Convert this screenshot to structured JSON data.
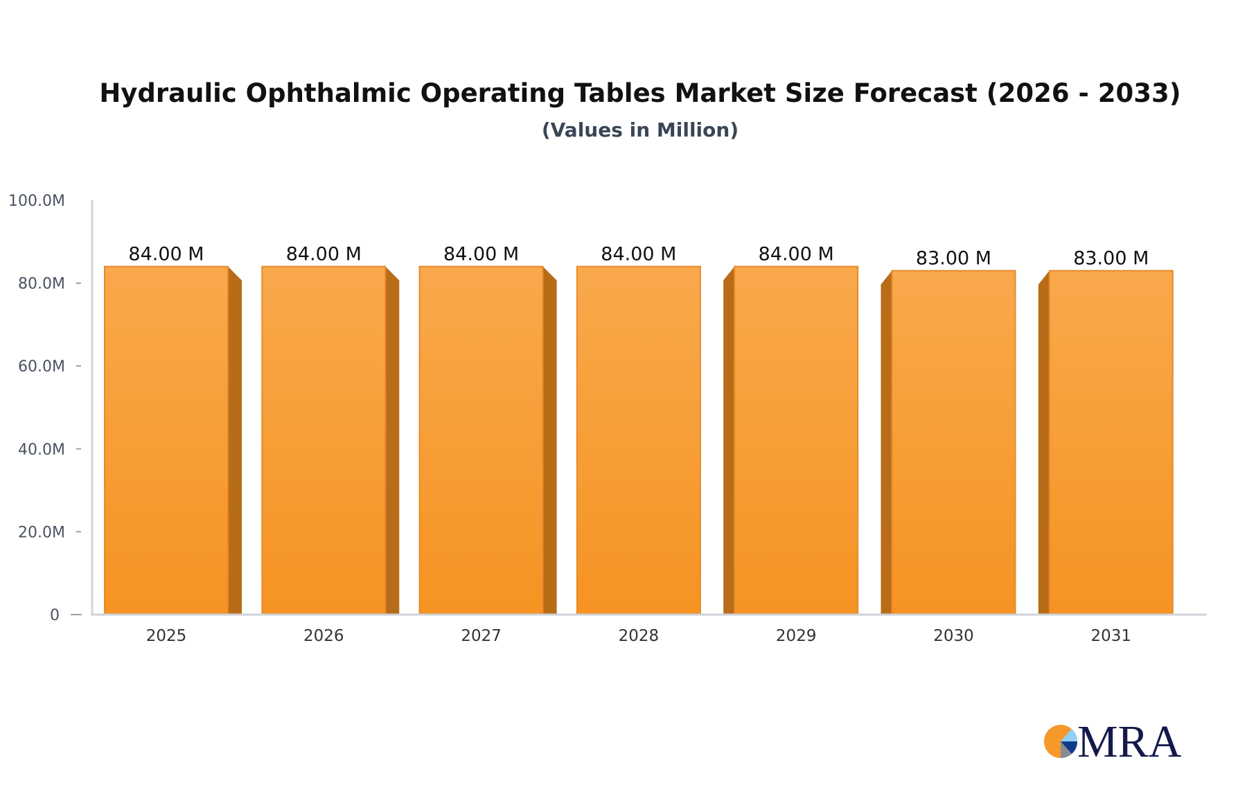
{
  "chart_data": {
    "type": "bar",
    "title": "Hydraulic Ophthalmic Operating Tables Market Size Forecast (2026 - 2033)",
    "subtitle": "(Values in Million)",
    "categories": [
      "2025",
      "2026",
      "2027",
      "2028",
      "2029",
      "2030",
      "2031"
    ],
    "values": [
      84,
      84,
      84,
      84,
      84,
      83,
      83
    ],
    "data_labels": [
      "84.00 M",
      "84.00 M",
      "84.00 M",
      "84.00 M",
      "84.00 M",
      "83.00 M",
      "83.00 M"
    ],
    "ylim": [
      0,
      100
    ],
    "yticks": [
      0,
      20,
      40,
      60,
      80,
      100
    ],
    "ytick_labels": [
      "0",
      "20.0M",
      "40.0M",
      "60.0M",
      "80.0M",
      "100.0M"
    ],
    "xlabel": "",
    "ylabel": "",
    "grid": false,
    "colors": {
      "bar_top": "#f8a94c",
      "bar_bottom": "#f69322",
      "bar_side": "#b86c18",
      "bar_edge": "#e8892a",
      "axis": "#d0d3da"
    }
  },
  "logo": {
    "text": "MRA"
  }
}
